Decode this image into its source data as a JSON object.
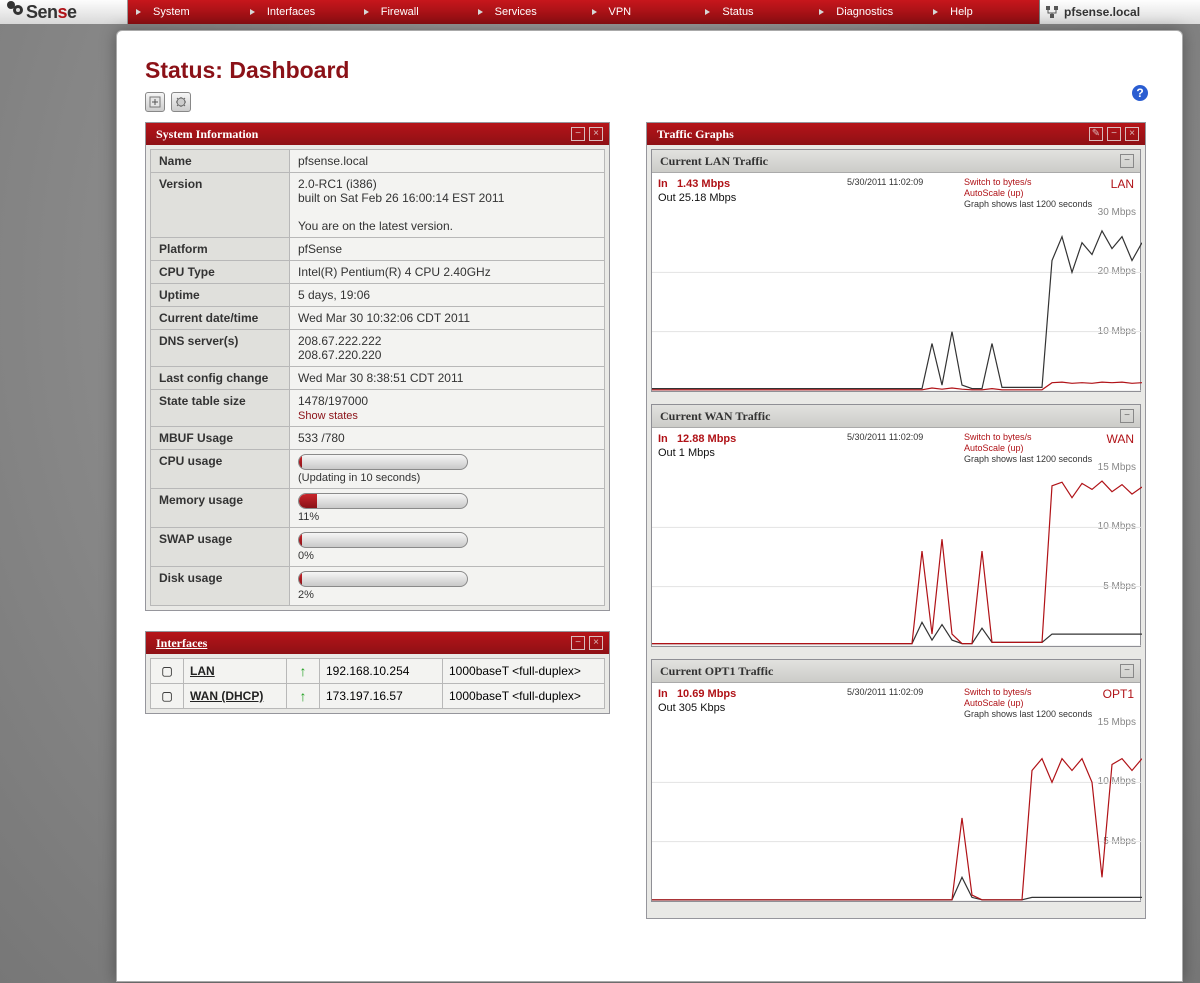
{
  "logo_text_1": "Sen",
  "logo_text_2": "s",
  "logo_text_3": "e",
  "menu": [
    "System",
    "Interfaces",
    "Firewall",
    "Services",
    "VPN",
    "Status",
    "Diagnostics",
    "Help"
  ],
  "hostname": "pfsense.local",
  "page_title": "Status: Dashboard",
  "sysinfo": {
    "title": "System Information",
    "rows": [
      {
        "k": "Name",
        "v": "pfsense.local"
      },
      {
        "k": "Version",
        "v": "2.0-RC1 (i386)\nbuilt on Sat Feb 26 16:00:14 EST 2011\n\nYou are on the latest version."
      },
      {
        "k": "Platform",
        "v": "pfSense"
      },
      {
        "k": "CPU Type",
        "v": "Intel(R) Pentium(R) 4 CPU 2.40GHz"
      },
      {
        "k": "Uptime",
        "v": "5 days, 19:06"
      },
      {
        "k": "Current date/time",
        "v": "Wed Mar 30 10:32:06 CDT 2011"
      },
      {
        "k": "DNS server(s)",
        "v": "208.67.222.222\n208.67.220.220"
      },
      {
        "k": "Last config change",
        "v": "Wed Mar 30 8:38:51 CDT 2011"
      },
      {
        "k": "State table size",
        "v": "1478/197000",
        "link": "Show states"
      },
      {
        "k": "MBUF Usage",
        "v": "533 /780"
      },
      {
        "k": "CPU usage",
        "bar": 0,
        "sub": "(Updating in 10 seconds)"
      },
      {
        "k": "Memory usage",
        "bar": 11,
        "sub": "11%"
      },
      {
        "k": "SWAP usage",
        "bar": 0,
        "sub": "0%"
      },
      {
        "k": "Disk usage",
        "bar": 2,
        "sub": "2%"
      }
    ]
  },
  "interfaces": {
    "title": "Interfaces",
    "rows": [
      {
        "name": "LAN",
        "ip": "192.168.10.254",
        "media": "1000baseT <full-duplex>"
      },
      {
        "name": "WAN (DHCP)",
        "ip": "173.197.16.57",
        "media": "1000baseT <full-duplex>"
      }
    ]
  },
  "traffic": {
    "title": "Traffic Graphs",
    "timestamp": "5/30/2011 11:02:09",
    "meta_l1": "Switch to bytes/s",
    "meta_l2": "AutoScale (up)",
    "meta_l3": "Graph shows last 1200 seconds",
    "graphs": [
      {
        "title": "Current LAN Traffic",
        "iface": "LAN",
        "in": "1.43 Mbps",
        "out": "25.18 Mbps",
        "ymax": 30,
        "ylabels": [
          "30 Mbps",
          "20 Mbps",
          "10 Mbps"
        ],
        "out_series": [
          0.4,
          0.4,
          0.4,
          0.4,
          0.4,
          0.4,
          0.4,
          0.4,
          0.4,
          0.4,
          0.4,
          0.4,
          0.4,
          0.4,
          0.4,
          0.4,
          0.4,
          0.4,
          0.4,
          0.4,
          0.4,
          0.4,
          0.4,
          0.4,
          0.4,
          0.4,
          0.4,
          0.4,
          8,
          1,
          10,
          1,
          0.4,
          0.4,
          8,
          0.6,
          0.6,
          0.6,
          0.6,
          0.6,
          22,
          26,
          20,
          25,
          23,
          27,
          24,
          26,
          22,
          25
        ],
        "in_series": [
          0.2,
          0.2,
          0.2,
          0.2,
          0.2,
          0.2,
          0.2,
          0.2,
          0.2,
          0.2,
          0.2,
          0.2,
          0.2,
          0.2,
          0.2,
          0.2,
          0.2,
          0.2,
          0.2,
          0.2,
          0.2,
          0.2,
          0.2,
          0.2,
          0.2,
          0.2,
          0.2,
          0.2,
          0.5,
          0.3,
          0.5,
          0.3,
          0.2,
          0.2,
          0.4,
          0.2,
          0.2,
          0.2,
          0.2,
          0.2,
          1.4,
          1.5,
          1.3,
          1.4,
          1.3,
          1.5,
          1.4,
          1.5,
          1.3,
          1.4
        ],
        "out_color": "#333333",
        "in_color": "#b01217"
      },
      {
        "title": "Current WAN Traffic",
        "iface": "WAN",
        "in": "12.88 Mbps",
        "out": "1 Mbps",
        "ymax": 15,
        "ylabels": [
          "15 Mbps",
          "10 Mbps",
          "5 Mbps"
        ],
        "in_series": [
          0.2,
          0.2,
          0.2,
          0.2,
          0.2,
          0.2,
          0.2,
          0.2,
          0.2,
          0.2,
          0.2,
          0.2,
          0.2,
          0.2,
          0.2,
          0.2,
          0.2,
          0.2,
          0.2,
          0.2,
          0.2,
          0.2,
          0.2,
          0.2,
          0.2,
          0.2,
          0.2,
          8,
          1,
          9,
          1,
          0.2,
          0.2,
          8,
          0.3,
          0.3,
          0.3,
          0.3,
          0.3,
          0.3,
          13.5,
          13.8,
          12.5,
          13.7,
          13.2,
          13.9,
          13.0,
          13.6,
          12.8,
          13.4
        ],
        "out_series": [
          0.2,
          0.2,
          0.2,
          0.2,
          0.2,
          0.2,
          0.2,
          0.2,
          0.2,
          0.2,
          0.2,
          0.2,
          0.2,
          0.2,
          0.2,
          0.2,
          0.2,
          0.2,
          0.2,
          0.2,
          0.2,
          0.2,
          0.2,
          0.2,
          0.2,
          0.2,
          0.2,
          2,
          0.5,
          1.8,
          0.5,
          0.2,
          0.2,
          1.5,
          0.3,
          0.3,
          0.3,
          0.3,
          0.3,
          0.3,
          1,
          1,
          1,
          1,
          1,
          1,
          1,
          1,
          1,
          1
        ],
        "out_color": "#333333",
        "in_color": "#b01217"
      },
      {
        "title": "Current OPT1 Traffic",
        "iface": "OPT1",
        "in": "10.69 Mbps",
        "out": "305 Kbps",
        "ymax": 15,
        "ylabels": [
          "15 Mbps",
          "10 Mbps",
          "5 Mbps"
        ],
        "in_series": [
          0.1,
          0.1,
          0.1,
          0.1,
          0.1,
          0.1,
          0.1,
          0.1,
          0.1,
          0.1,
          0.1,
          0.1,
          0.1,
          0.1,
          0.1,
          0.1,
          0.1,
          0.1,
          0.1,
          0.1,
          0.1,
          0.1,
          0.1,
          0.1,
          0.1,
          0.1,
          0.1,
          0.1,
          0.1,
          0.1,
          0.1,
          7,
          0.5,
          0.1,
          0.1,
          0.1,
          0.1,
          0.1,
          11,
          12,
          10,
          12,
          11,
          12,
          10,
          2,
          11.5,
          12,
          11,
          12
        ],
        "out_series": [
          0.1,
          0.1,
          0.1,
          0.1,
          0.1,
          0.1,
          0.1,
          0.1,
          0.1,
          0.1,
          0.1,
          0.1,
          0.1,
          0.1,
          0.1,
          0.1,
          0.1,
          0.1,
          0.1,
          0.1,
          0.1,
          0.1,
          0.1,
          0.1,
          0.1,
          0.1,
          0.1,
          0.1,
          0.1,
          0.1,
          0.1,
          2,
          0.3,
          0.1,
          0.1,
          0.1,
          0.1,
          0.1,
          0.3,
          0.3,
          0.3,
          0.3,
          0.3,
          0.3,
          0.3,
          0.3,
          0.3,
          0.3,
          0.3,
          0.3
        ],
        "out_color": "#333333",
        "in_color": "#b01217"
      }
    ]
  },
  "colors": {
    "accent": "#8b1117",
    "grid": "#e3e3e3"
  }
}
